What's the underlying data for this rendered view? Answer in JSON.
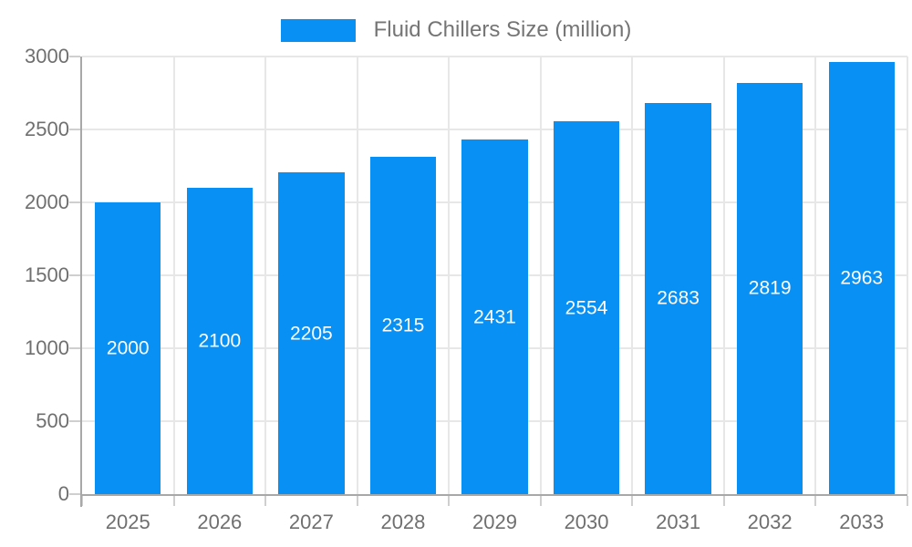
{
  "legend": {
    "label": "Fluid Chillers Size (million)"
  },
  "colors": {
    "bar": "#0890f4",
    "bar_label_text": "#ffffff",
    "grid": "#e7e7e7",
    "axis_line": "#a8a8a8",
    "tick_mark": "#cfcfcf",
    "axis_label_text": "#6f6f6f",
    "legend_text": "#757575",
    "background": "#ffffff"
  },
  "chart_data": {
    "type": "bar",
    "title": "Fluid Chillers Size (million)",
    "categories": [
      "2025",
      "2026",
      "2027",
      "2028",
      "2029",
      "2030",
      "2031",
      "2032",
      "2033"
    ],
    "values": [
      2000,
      2100,
      2205,
      2315,
      2431,
      2554,
      2683,
      2819,
      2963
    ],
    "series": [
      {
        "name": "Fluid Chillers Size (million)",
        "values": [
          2000,
          2100,
          2205,
          2315,
          2431,
          2554,
          2683,
          2819,
          2963
        ]
      }
    ],
    "xlabel": "",
    "ylabel": "",
    "ylim": [
      0,
      3000
    ],
    "yticks": [
      0,
      500,
      1000,
      1500,
      2000,
      2500,
      3000
    ],
    "grid": true,
    "legend_position": "top",
    "bar_value_labels": "inside-center"
  }
}
